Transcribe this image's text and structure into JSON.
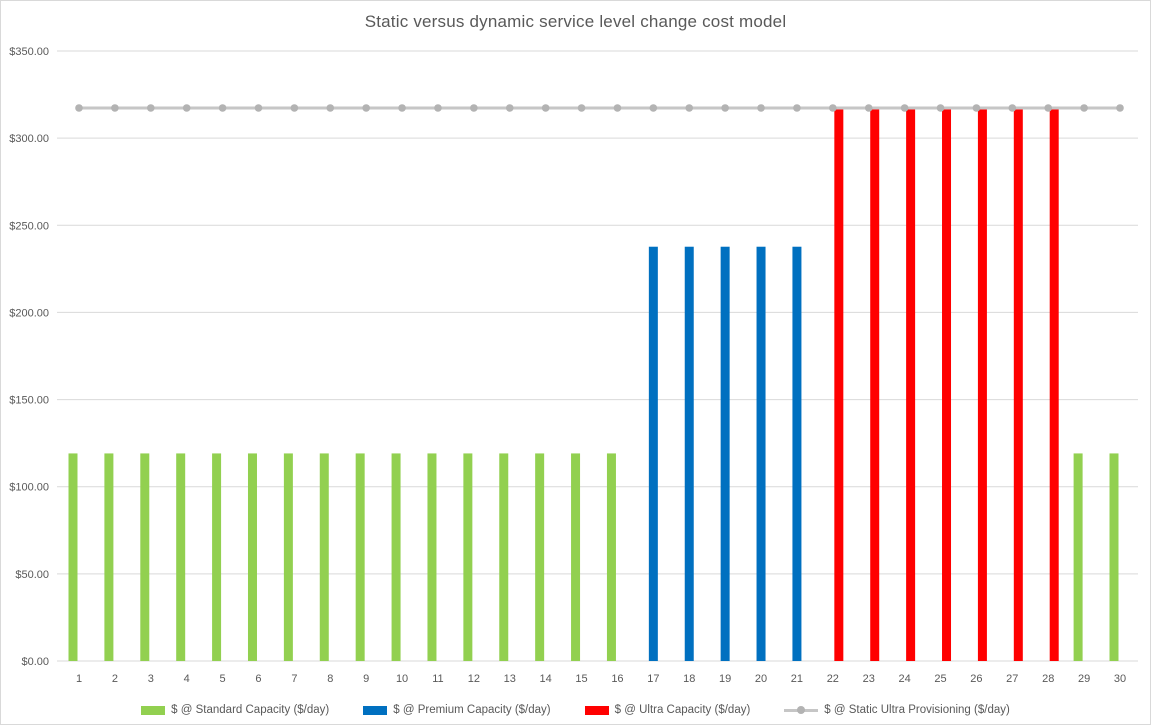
{
  "chart_data": {
    "type": "bar",
    "title": "Static versus dynamic service level change cost model",
    "xlabel": "",
    "ylabel": "",
    "categories": [
      1,
      2,
      3,
      4,
      5,
      6,
      7,
      8,
      9,
      10,
      11,
      12,
      13,
      14,
      15,
      16,
      17,
      18,
      19,
      20,
      21,
      22,
      23,
      24,
      25,
      26,
      27,
      28,
      29,
      30
    ],
    "ylim": [
      0,
      350
    ],
    "grid": true,
    "legend_position": "bottom",
    "y_ticks": [
      {
        "value": 0,
        "label": "$0.00"
      },
      {
        "value": 50,
        "label": "$50.00"
      },
      {
        "value": 100,
        "label": "$100.00"
      },
      {
        "value": 150,
        "label": "$150.00"
      },
      {
        "value": 200,
        "label": "$200.00"
      },
      {
        "value": 250,
        "label": "$250.00"
      },
      {
        "value": 300,
        "label": "$300.00"
      },
      {
        "value": 350,
        "label": "$350.00"
      }
    ],
    "series": [
      {
        "name": "$ @ Standard Capacity ($/day)",
        "type": "bar",
        "color": "#92D050",
        "values": [
          119.1,
          119.1,
          119.1,
          119.1,
          119.1,
          119.1,
          119.1,
          119.1,
          119.1,
          119.1,
          119.1,
          119.1,
          119.1,
          119.1,
          119.1,
          119.1,
          null,
          null,
          null,
          null,
          null,
          null,
          null,
          null,
          null,
          null,
          null,
          null,
          119.1,
          119.1
        ]
      },
      {
        "name": "$ @ Premium Capacity ($/day)",
        "type": "bar",
        "color": "#0070C0",
        "values": [
          null,
          null,
          null,
          null,
          null,
          null,
          null,
          null,
          null,
          null,
          null,
          null,
          null,
          null,
          null,
          null,
          237.7,
          237.7,
          237.7,
          237.7,
          237.7,
          null,
          null,
          null,
          null,
          null,
          null,
          null,
          null,
          null
        ]
      },
      {
        "name": "$ @ Ultra Capacity ($/day)",
        "type": "bar",
        "color": "#FF0000",
        "values": [
          null,
          null,
          null,
          null,
          null,
          null,
          null,
          null,
          null,
          null,
          null,
          null,
          null,
          null,
          null,
          null,
          null,
          null,
          null,
          null,
          null,
          317.3,
          317.3,
          317.3,
          317.3,
          317.3,
          317.3,
          317.3,
          null,
          null
        ]
      },
      {
        "name": "$ @ Static Ultra Provisioning ($/day)",
        "type": "line",
        "color": "#C6C6C6",
        "marker_color": "#B3B3B3",
        "values": [
          317.3,
          317.3,
          317.3,
          317.3,
          317.3,
          317.3,
          317.3,
          317.3,
          317.3,
          317.3,
          317.3,
          317.3,
          317.3,
          317.3,
          317.3,
          317.3,
          317.3,
          317.3,
          317.3,
          317.3,
          317.3,
          317.3,
          317.3,
          317.3,
          317.3,
          317.3,
          317.3,
          317.3,
          317.3,
          317.3
        ]
      }
    ],
    "style": {
      "grid_color": "#D9D9D9",
      "axis_color": "#D9D9D9",
      "text_color": "#595959",
      "title_color": "#595959",
      "background": "#FFFFFF"
    }
  }
}
